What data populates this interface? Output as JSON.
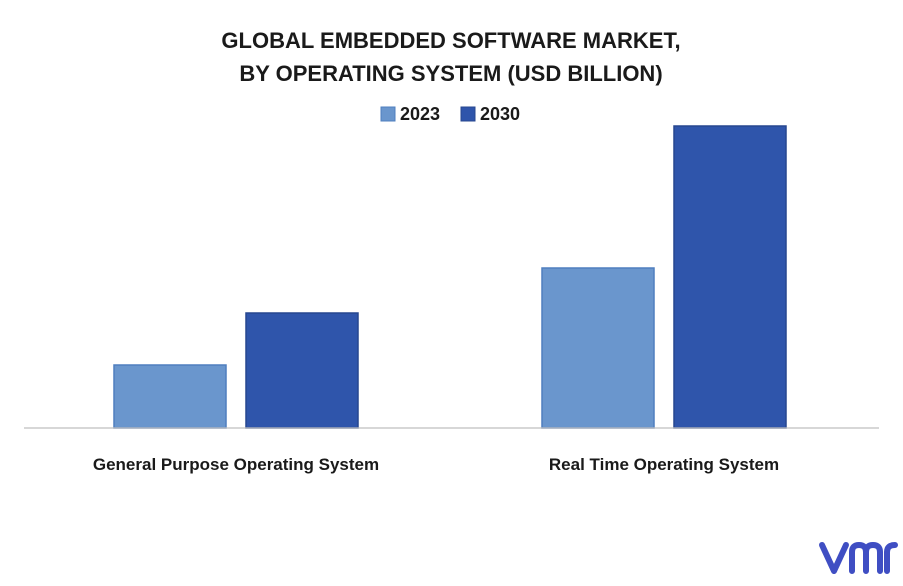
{
  "chart_data": {
    "type": "bar",
    "title": "GLOBAL EMBEDDED SOFTWARE MARKET,",
    "subtitle": "BY OPERATING SYSTEM (USD BILLION)",
    "categories": [
      "General Purpose Operating System",
      "Real Time Operating System"
    ],
    "series": [
      {
        "name": "2023",
        "values": [
          6.3,
          16.0
        ],
        "color": "#6a96cd"
      },
      {
        "name": "2030",
        "values": [
          11.5,
          30.2
        ],
        "color": "#2f55ab"
      }
    ],
    "xlabel": "",
    "ylabel": "",
    "ylim": [
      0,
      32
    ],
    "grid": false,
    "legend_position": "top-center"
  },
  "colors": {
    "axis": "#bfbfbf",
    "bar_border_2023": "#4f7fbf",
    "bar_border_2030": "#27478f",
    "logo": "#3f4ec3"
  },
  "logo": {
    "icon": "vmr-logo-icon"
  }
}
